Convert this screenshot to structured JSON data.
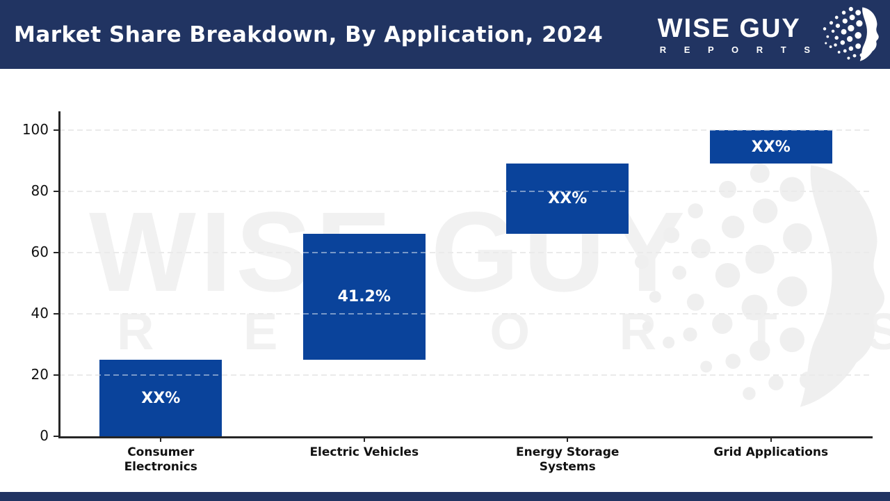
{
  "header": {
    "title": "Market Share Breakdown, By Application, 2024",
    "logo": {
      "line1": "WISE GUY",
      "line2": "R E P O R T S"
    }
  },
  "watermark": {
    "line1": "WISE GUY",
    "line2": "R E P O R T S"
  },
  "colors": {
    "header_bg": "#213462",
    "footer_bg": "#213462",
    "bar": "#0a439b",
    "grid": "#d9d9d9",
    "grid_over_bar": "rgba(255,255,255,0.45)",
    "axis": "#262626",
    "watermark": "#f1f1f1",
    "watermark_head": "#efefef",
    "bar_label": "#ffffff",
    "tick_text": "#111111"
  },
  "chart_data": {
    "type": "bar",
    "subtype": "floating-waterfall",
    "title": "Market Share Breakdown, By Application, 2024",
    "xlabel": "",
    "ylabel": "",
    "ylim": [
      0,
      100
    ],
    "yticks": [
      "0",
      "20",
      "40",
      "60",
      "80",
      "100"
    ],
    "ytick_values": [
      0,
      20,
      40,
      60,
      80,
      100
    ],
    "grid": "horizontal-dashed",
    "legend": "none",
    "categories": [
      "Consumer Electronics",
      "Electric Vehicles",
      "Energy Storage Systems",
      "Grid Applications"
    ],
    "bars": [
      {
        "label": "Consumer Electronics",
        "label_lines": [
          "Consumer",
          "Electronics"
        ],
        "start": 0,
        "end": 25,
        "display": "XX%"
      },
      {
        "label": "Electric Vehicles",
        "label_lines": [
          "Electric Vehicles"
        ],
        "start": 25,
        "end": 66.2,
        "display": "41.2%"
      },
      {
        "label": "Energy Storage Systems",
        "label_lines": [
          "Energy Storage",
          "Systems"
        ],
        "start": 66.2,
        "end": 89,
        "display": "XX%"
      },
      {
        "label": "Grid Applications",
        "label_lines": [
          "Grid Applications"
        ],
        "start": 89,
        "end": 100,
        "display": "XX%"
      }
    ]
  }
}
